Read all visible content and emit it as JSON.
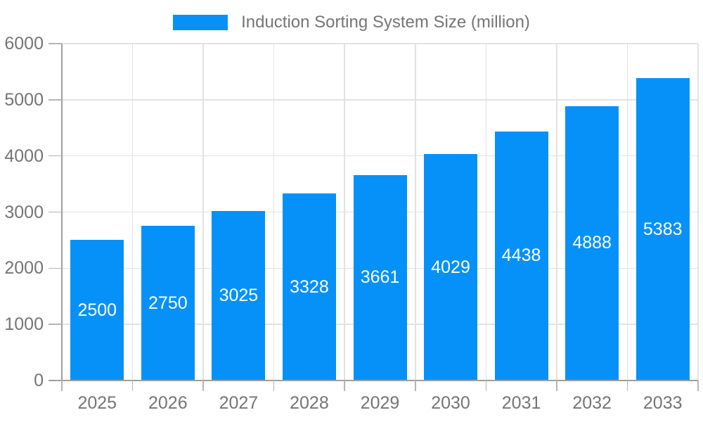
{
  "chart_data": {
    "type": "bar",
    "title": "",
    "categories": [
      "2025",
      "2026",
      "2027",
      "2028",
      "2029",
      "2030",
      "2031",
      "2032",
      "2033"
    ],
    "series": [
      {
        "name": "Induction Sorting System Size (million)",
        "values": [
          2500,
          2750,
          3025,
          3328,
          3661,
          4029,
          4438,
          4888,
          5383
        ]
      }
    ],
    "xlabel": "",
    "ylabel": "",
    "ylim": [
      0,
      6000
    ],
    "ytick_step": 1000,
    "yticks": [
      0,
      1000,
      2000,
      3000,
      4000,
      5000,
      6000
    ],
    "grid": true,
    "legend_position": "top-center",
    "value_label_position": "inside-center",
    "colors": {
      "bar": "#0691F8",
      "grid": "#E2E2E2",
      "axis": "#9E9E9E",
      "tick": "#B5B5B5",
      "axis_label": "#757575",
      "legend_label": "#757575",
      "value_label": "#FFFFFF",
      "background": "#FFFFFF"
    }
  }
}
